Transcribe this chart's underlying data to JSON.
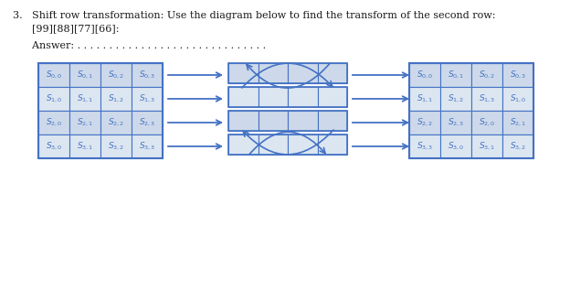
{
  "title_line1": "3.   Shift row transformation: Use the diagram below to find the transform of the second row:",
  "title_line2": "      [99][88][77][66]:",
  "answer_line": "      Answer: . . . . . . . . . . . . . . . . . . . . . . . . . . . . . .",
  "bg_color": "#ffffff",
  "border_color": "#4472c4",
  "cell_light": "#cdd9ea",
  "cell_mid": "#dce6f1",
  "text_color": "#4472c4",
  "left_grid": [
    [
      "S_{0,0}",
      "S_{0,1}",
      "S_{0,2}",
      "S_{0,3}"
    ],
    [
      "S_{1,0}",
      "S_{1,1}",
      "S_{1,2}",
      "S_{1,3}"
    ],
    [
      "S_{2,0}",
      "S_{2,1}",
      "S_{2,2}",
      "S_{2,3}"
    ],
    [
      "S_{3,0}",
      "S_{3,1}",
      "S_{3,2}",
      "S_{3,3}"
    ]
  ],
  "right_grid": [
    [
      "S_{0,0}",
      "S_{0,1}",
      "S_{0,2}",
      "S_{0,3}"
    ],
    [
      "S_{1,1}",
      "S_{1,2}",
      "S_{1,3}",
      "S_{1,0}"
    ],
    [
      "S_{2,2}",
      "S_{2,3}",
      "S_{2,0}",
      "S_{2,1}"
    ],
    [
      "S_{3,3}",
      "S_{3,0}",
      "S_{3,1}",
      "S_{3,2}"
    ]
  ]
}
